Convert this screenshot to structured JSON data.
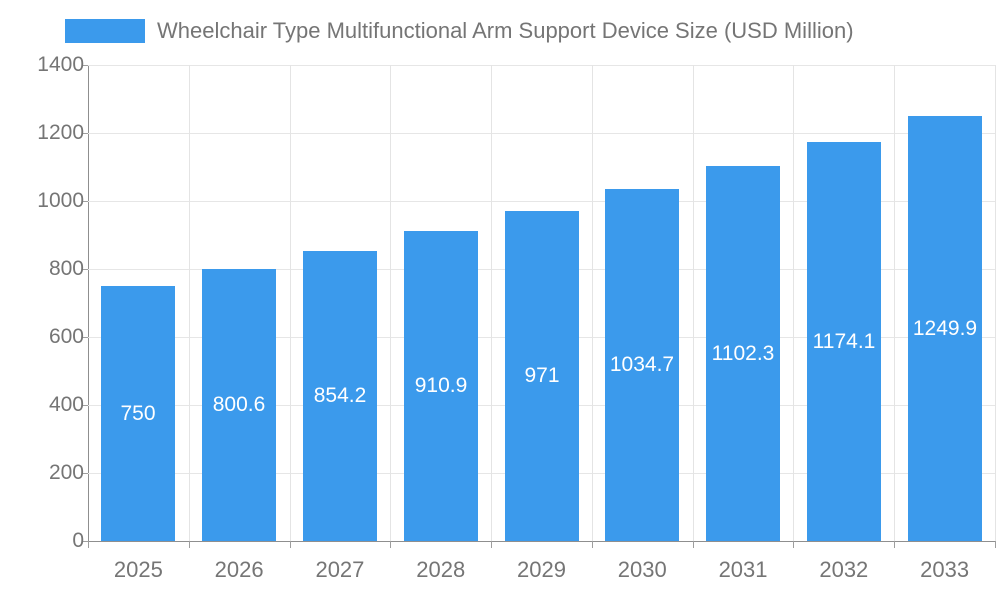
{
  "chart_data": {
    "type": "bar",
    "title": "Wheelchair Type Multifunctional Arm Support Device Size (USD Million)",
    "legend": [
      "Wheelchair Type Multifunctional Arm Support Device Size (USD Million)"
    ],
    "legend_position": "top",
    "categories": [
      "2025",
      "2026",
      "2027",
      "2028",
      "2029",
      "2030",
      "2031",
      "2032",
      "2033"
    ],
    "series": [
      {
        "name": "Wheelchair Type Multifunctional Arm Support Device Size (USD Million)",
        "values": [
          750,
          800.6,
          854.2,
          910.9,
          971,
          1034.7,
          1102.3,
          1174.1,
          1249.9
        ],
        "data_labels": [
          "750",
          "800.6",
          "854.2",
          "910.9",
          "971",
          "1034.7",
          "1102.3",
          "1174.1",
          "1249.9"
        ]
      }
    ],
    "xlabel": "",
    "ylabel": "",
    "ylim": [
      0,
      1400
    ],
    "y_ticks": [
      0,
      200,
      400,
      600,
      800,
      1000,
      1200,
      1400
    ],
    "grid": true,
    "colors": {
      "bar": "#3b9aec",
      "grid": "#e6e6e6",
      "axis": "#8f8f8f",
      "tick_text": "#757575",
      "title_text": "#757575",
      "bar_label_text": "#ffffff",
      "background": "#ffffff"
    }
  }
}
